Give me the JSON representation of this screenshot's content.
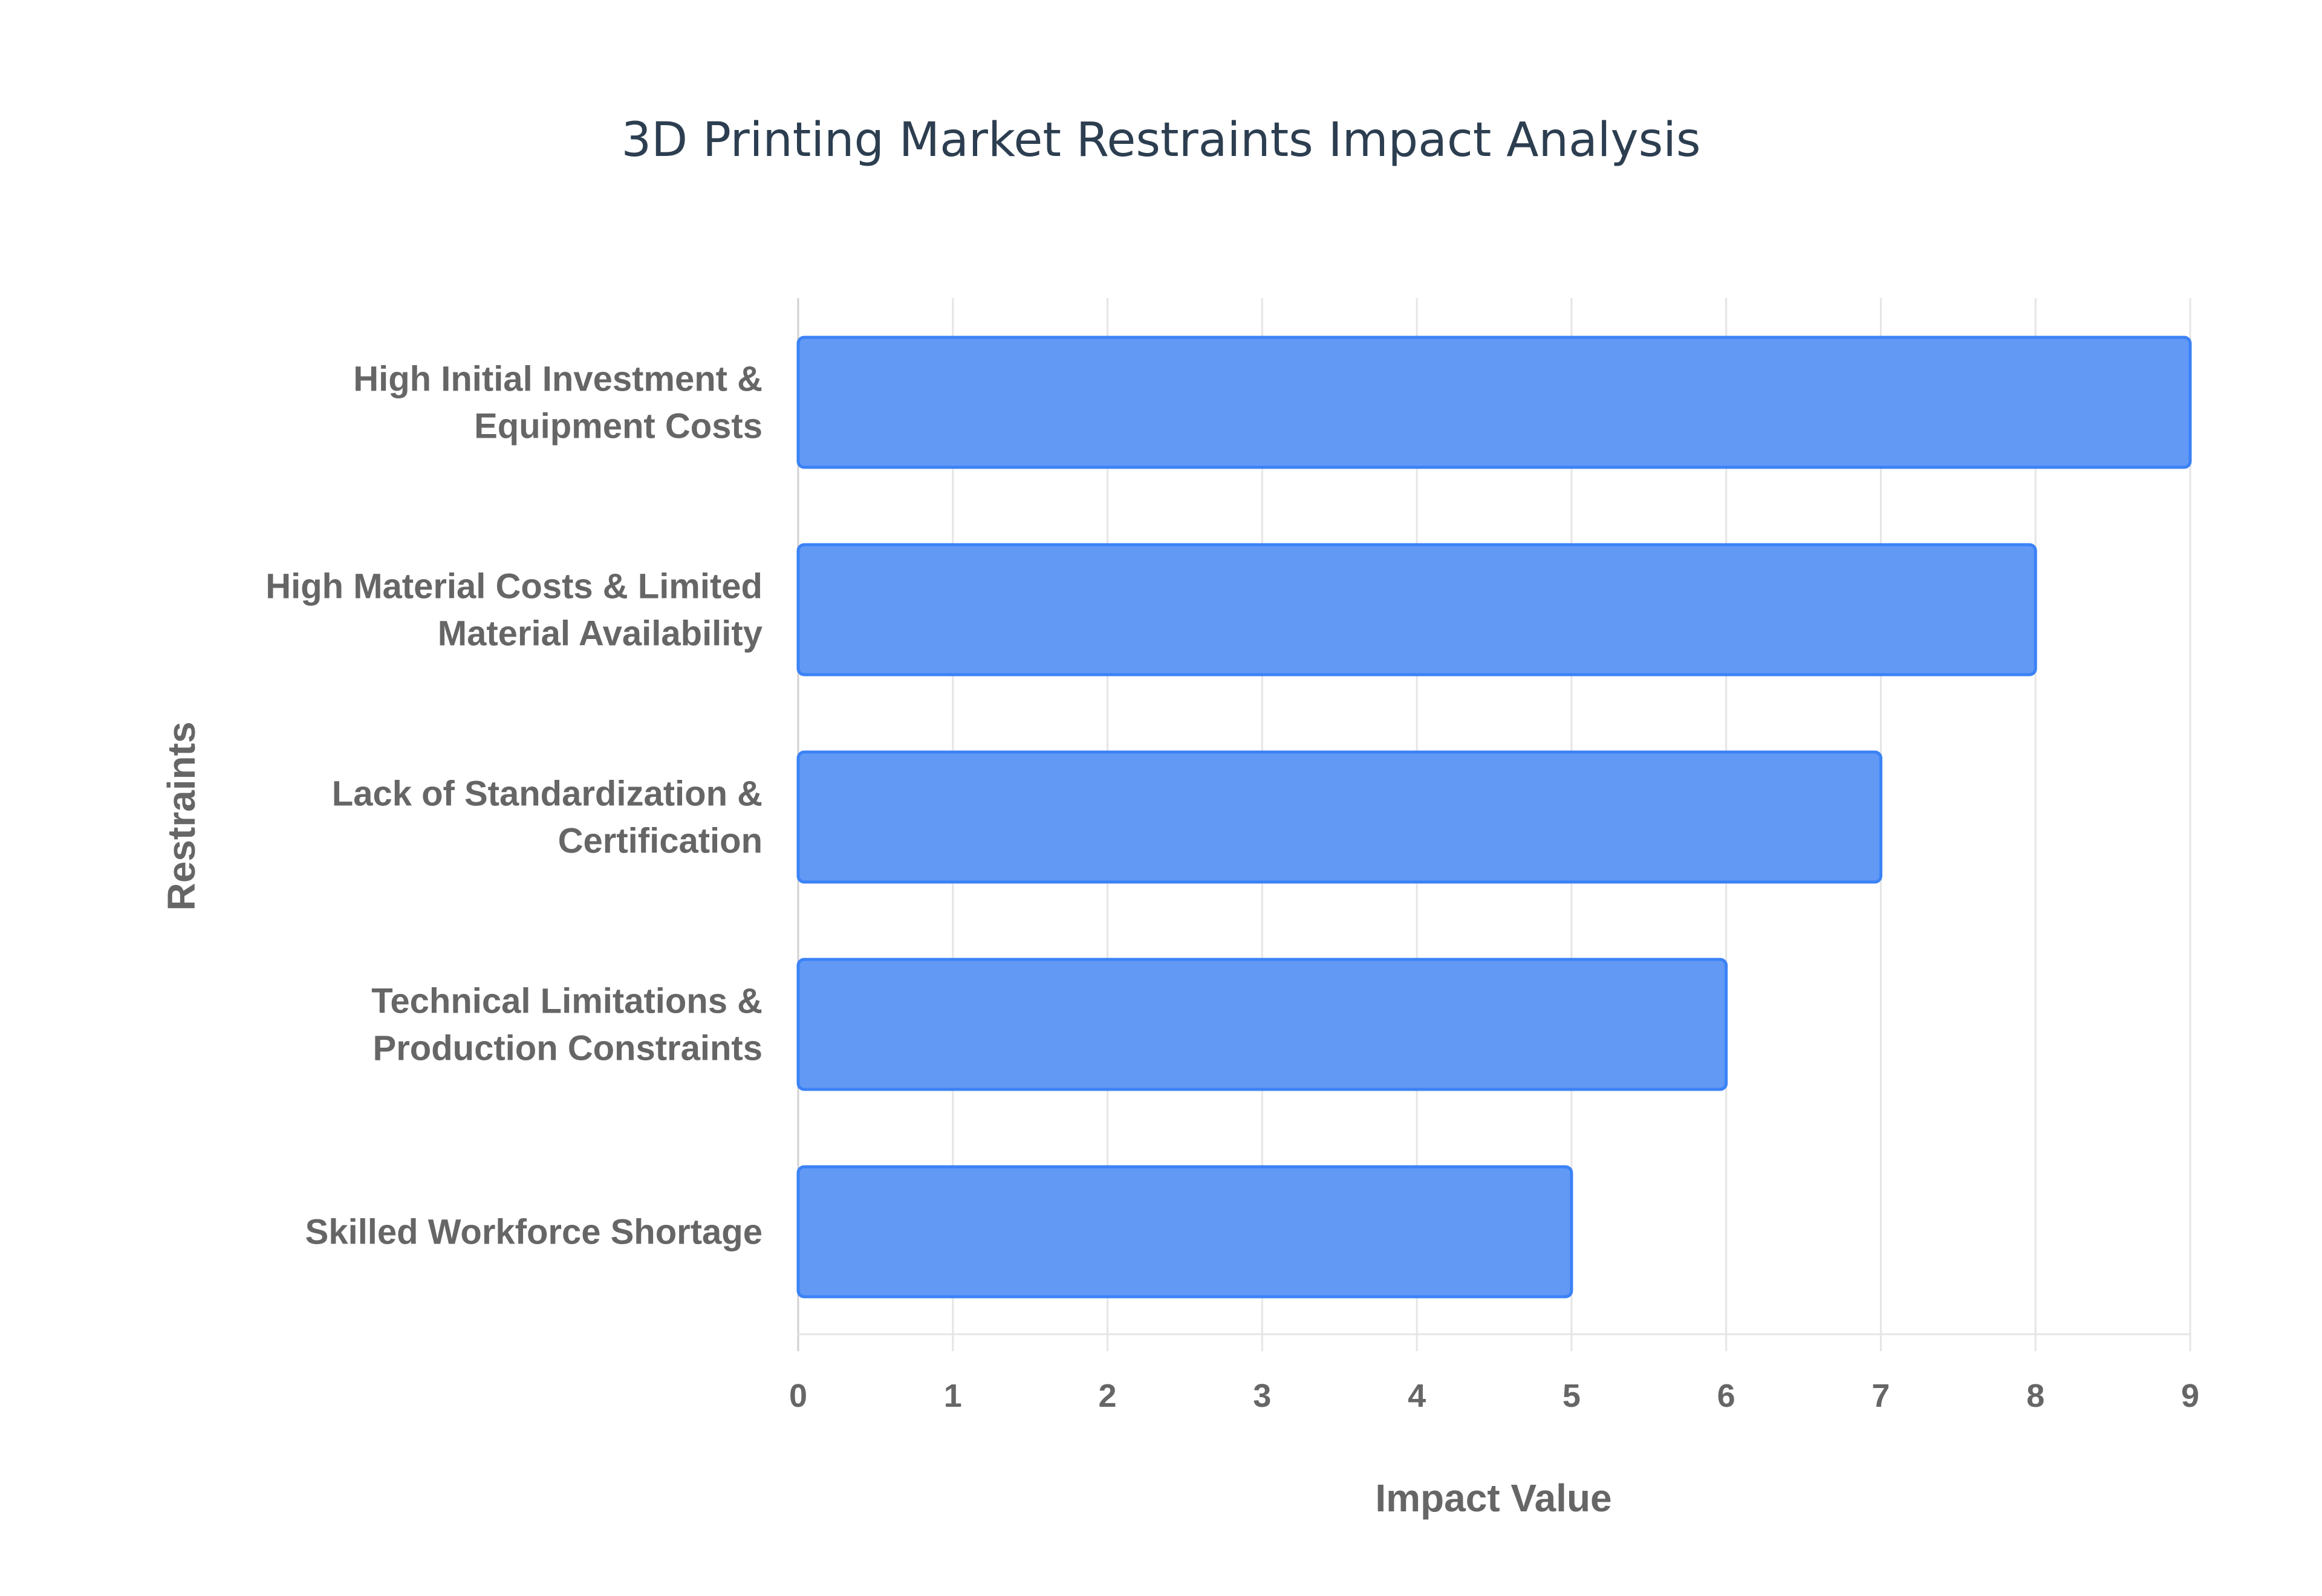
{
  "chart_data": {
    "type": "bar",
    "orientation": "horizontal",
    "title": "3D Printing Market Restraints Impact Analysis",
    "xlabel": "Impact Value",
    "ylabel": "Restraints",
    "categories": [
      [
        "High Initial Investment &",
        "Equipment Costs"
      ],
      [
        "High Material Costs & Limited",
        "Material Availability"
      ],
      [
        "Lack of Standardization &",
        "Certification"
      ],
      [
        "Technical Limitations &",
        "Production Constraints"
      ],
      [
        "Skilled Workforce Shortage"
      ]
    ],
    "values": [
      9,
      8,
      7,
      6,
      5
    ],
    "xlim": [
      0,
      9
    ],
    "xticks": [
      "0",
      "1",
      "2",
      "3",
      "4",
      "5",
      "6",
      "7",
      "8",
      "9"
    ],
    "grid": true,
    "legend": "none",
    "colors": {
      "bar_fill": "#6299f5",
      "bar_border": "#3b82f6",
      "grid": "#e5e5e5",
      "text": "#666666",
      "title": "#2c3e50"
    }
  }
}
